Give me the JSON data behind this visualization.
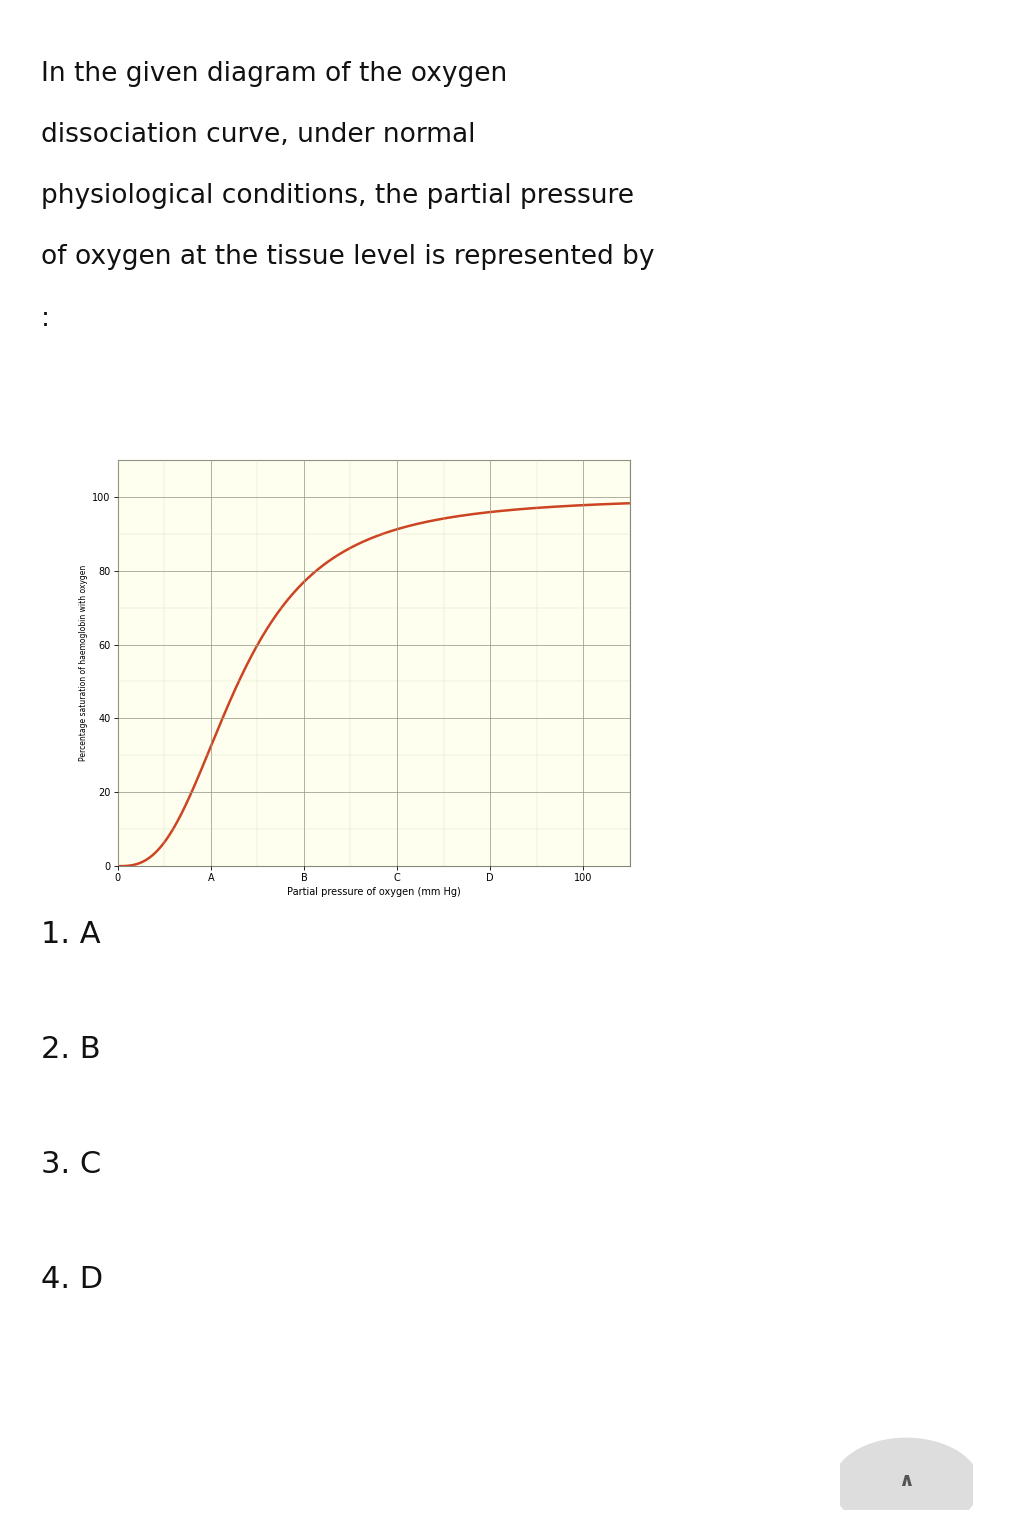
{
  "question_text_lines": [
    "In the given diagram of the oxygen",
    "dissociation curve, under normal",
    "physiological conditions, the partial pressure",
    "of oxygen at the tissue level is represented by",
    ":"
  ],
  "question_fontsize": 19,
  "chart": {
    "xlabel": "Partial pressure of oxygen (mm Hg)",
    "ylabel": "Percentage saturation of haemoglobin with oxygen",
    "x_tick_positions": [
      0,
      20,
      40,
      60,
      80,
      100
    ],
    "x_tick_labels": [
      "0",
      "A",
      "B",
      "C",
      "D",
      "100"
    ],
    "y_tick_positions": [
      0,
      20,
      40,
      60,
      80,
      100
    ],
    "y_tick_labels": [
      "0",
      "20",
      "40",
      "60",
      "80",
      "100"
    ],
    "xlim": [
      0,
      110
    ],
    "ylim": [
      0,
      110
    ],
    "bg_color": "#FFFFF0",
    "grid_major_color": "#999988",
    "grid_minor_color": "#CCCCAA",
    "curve_color": "#CC4422",
    "curve_linewidth": 1.8,
    "P50": 26.0,
    "hill_n": 2.8
  },
  "options": [
    "1. A",
    "2. B",
    "3. C",
    "4. D"
  ],
  "options_fontsize": 22,
  "bg_color": "#FFFFFF",
  "text_color": "#111111"
}
